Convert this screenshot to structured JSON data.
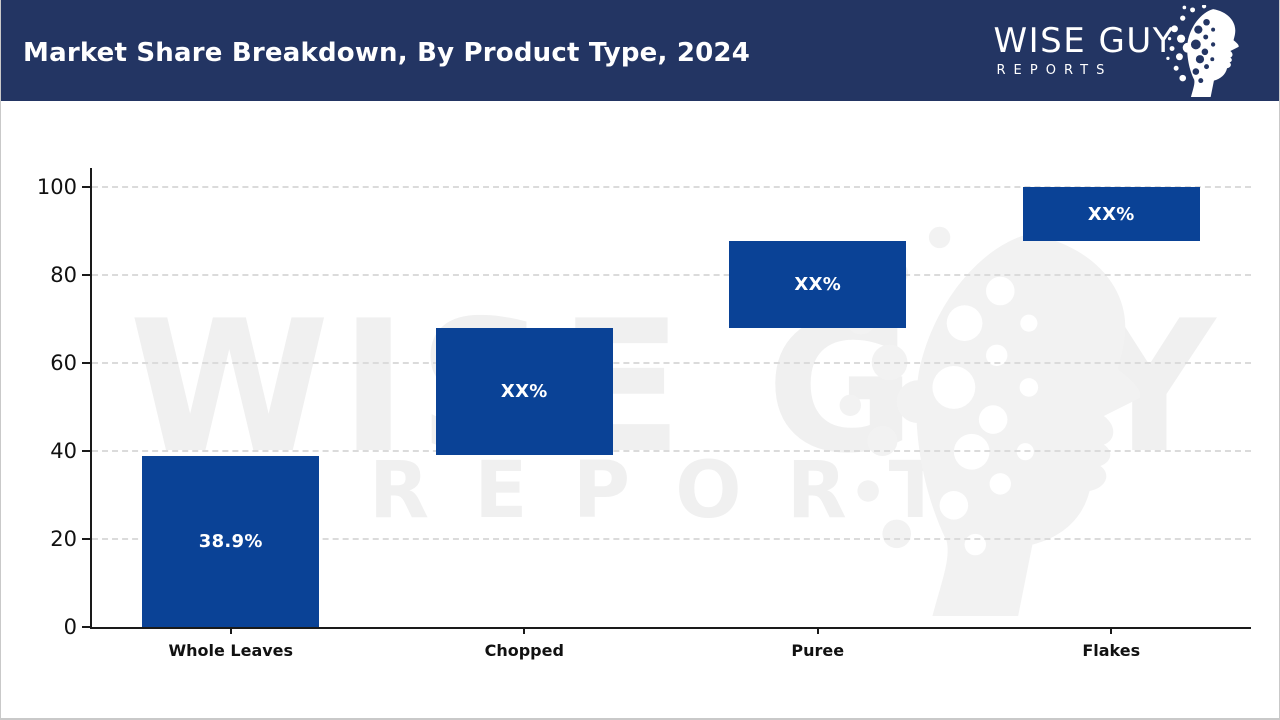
{
  "header": {
    "title": "Market Share Breakdown, By Product Type, 2024",
    "logo": {
      "line1": "WISE GUY",
      "line2": "REPORTS"
    }
  },
  "watermark": {
    "line1": "WISE GUY",
    "line2": "REPORTS"
  },
  "chart_data": {
    "type": "bar",
    "subtype": "floating-waterfall",
    "title": "Market Share Breakdown, By Product Type, 2024",
    "categories": [
      "Whole Leaves",
      "Chopped",
      "Puree",
      "Flakes"
    ],
    "segments": [
      {
        "category": "Whole Leaves",
        "start": 0,
        "end": 38.9,
        "label": "38.9%"
      },
      {
        "category": "Chopped",
        "start": 39,
        "end": 68,
        "label": "XX%"
      },
      {
        "category": "Puree",
        "start": 68,
        "end": 87.7,
        "label": "XX%"
      },
      {
        "category": "Flakes",
        "start": 87.7,
        "end": 100,
        "label": "XX%"
      }
    ],
    "ylim": [
      0,
      100
    ],
    "yticks": [
      0,
      20,
      40,
      60,
      80,
      100
    ],
    "grid": "horizontal-dashed",
    "legend": "none",
    "bar_color": "#0a4296",
    "bar_label_color": "#ffffff"
  }
}
